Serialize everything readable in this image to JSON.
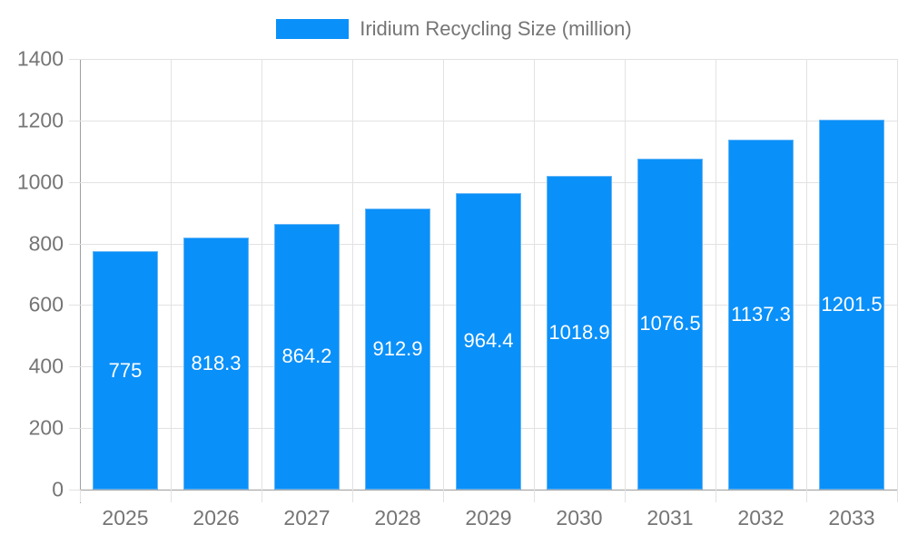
{
  "chart_data": {
    "type": "bar",
    "title": "Iridium Recycling Size (million)",
    "legend": {
      "label": "Iridium Recycling Size (million)",
      "position": "top"
    },
    "categories": [
      "2025",
      "2026",
      "2027",
      "2028",
      "2029",
      "2030",
      "2031",
      "2032",
      "2033"
    ],
    "series": [
      {
        "name": "Iridium Recycling Size (million)",
        "values": [
          775,
          818.3,
          864.2,
          912.9,
          964.4,
          1018.9,
          1076.5,
          1137.3,
          1201.5
        ]
      }
    ],
    "value_labels": [
      "775",
      "818.3",
      "864.2",
      "912.9",
      "964.4",
      "1018.9",
      "1076.5",
      "1137.3",
      "1201.5"
    ],
    "xlabel": "",
    "ylabel": "",
    "ylim": [
      0,
      1400
    ],
    "ytick_step": 200,
    "ytick_labels": [
      "0",
      "200",
      "400",
      "600",
      "800",
      "1000",
      "1200",
      "1400"
    ],
    "grid": true,
    "colors": {
      "bar_fill": "#0a90f9",
      "bar_border": "#64b5f6",
      "value_label_text": "#ffffff",
      "legend_text": "#757575",
      "axis_tick_text": "#757575",
      "axis_line": "#9e9e9e",
      "gridline": "#e2e2e2",
      "background": "#ffffff"
    }
  }
}
